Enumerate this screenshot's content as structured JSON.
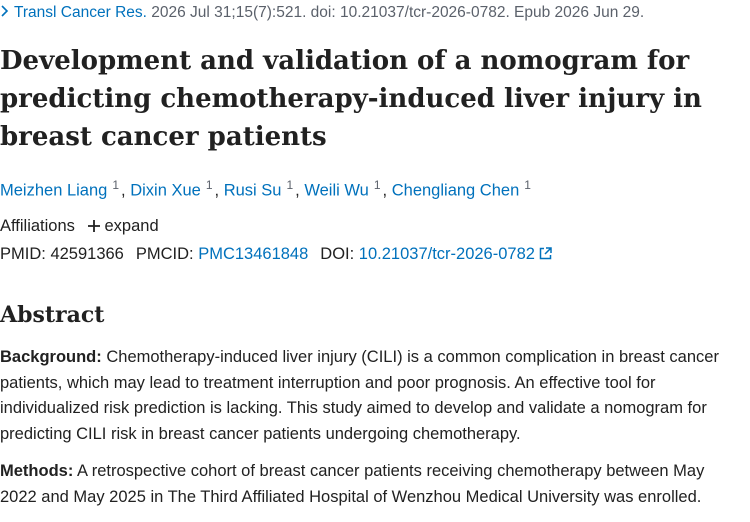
{
  "citation": {
    "journal": "Transl Cancer Res.",
    "details": "2026 Jul 31;15(7):521. doi: 10.21037/tcr-2026-0782. Epub 2026 Jun 29."
  },
  "title": "Development and validation of a nomogram for predicting chemotherapy-induced liver injury in breast cancer patients",
  "authors": [
    {
      "name": "Meizhen Liang",
      "aff": "1"
    },
    {
      "name": "Dixin Xue",
      "aff": "1"
    },
    {
      "name": "Rusi Su",
      "aff": "1"
    },
    {
      "name": "Weili Wu",
      "aff": "1"
    },
    {
      "name": "Chengliang Chen",
      "aff": "1"
    }
  ],
  "author_separator": ",",
  "affiliations": {
    "label": "Affiliations",
    "toggle": "expand"
  },
  "identifiers": [
    {
      "label": "PMID:",
      "value": "42591366"
    },
    {
      "label": "PMCID:",
      "value": "PMC13461848"
    },
    {
      "label": "DOI:",
      "value": "10.21037/tcr-2026-0782"
    }
  ],
  "abstract": {
    "heading": "Abstract",
    "sections": [
      {
        "label": "Background:",
        "text": "Chemotherapy-induced liver injury (CILI) is a common complication in breast cancer patients, which may lead to treatment interruption and poor prognosis. An effective tool for individualized risk prediction is lacking. This study aimed to develop and validate a nomogram for predicting CILI risk in breast cancer patients undergoing chemotherapy."
      },
      {
        "label": "Methods:",
        "text": "A retrospective cohort of breast cancer patients receiving chemotherapy between May 2022 and May 2025 in The Third Affiliated Hospital of Wenzhou Medical University was enrolled."
      }
    ]
  }
}
